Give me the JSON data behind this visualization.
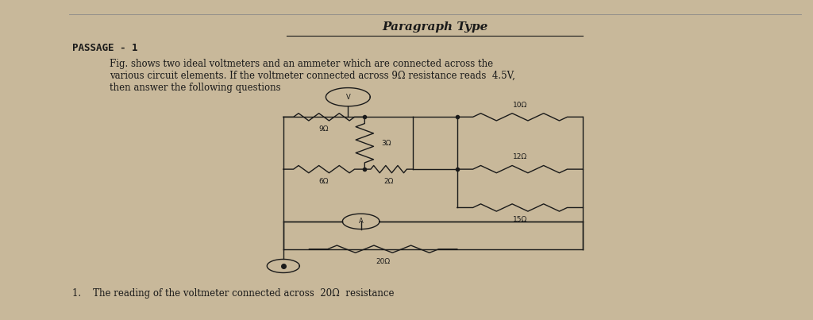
{
  "title": "Paragraph Type",
  "passage_header": "PASSAGE - 1",
  "passage_text": "Fig. shows two ideal voltmeters and an ammeter which are connected across the\nvarious circuit elements. If the voltmeter connected across 9Ω resistance reads  4.5V,\nthen answer the following questions",
  "footer_text": "1.    The reading of the voltmeter connected across  20Ω  resistance",
  "bg_color": "#c8b89a",
  "paper_color": "#e8e2d0",
  "text_color": "#1a1a1a",
  "figsize": [
    10.24,
    4.03
  ],
  "dpi": 100
}
